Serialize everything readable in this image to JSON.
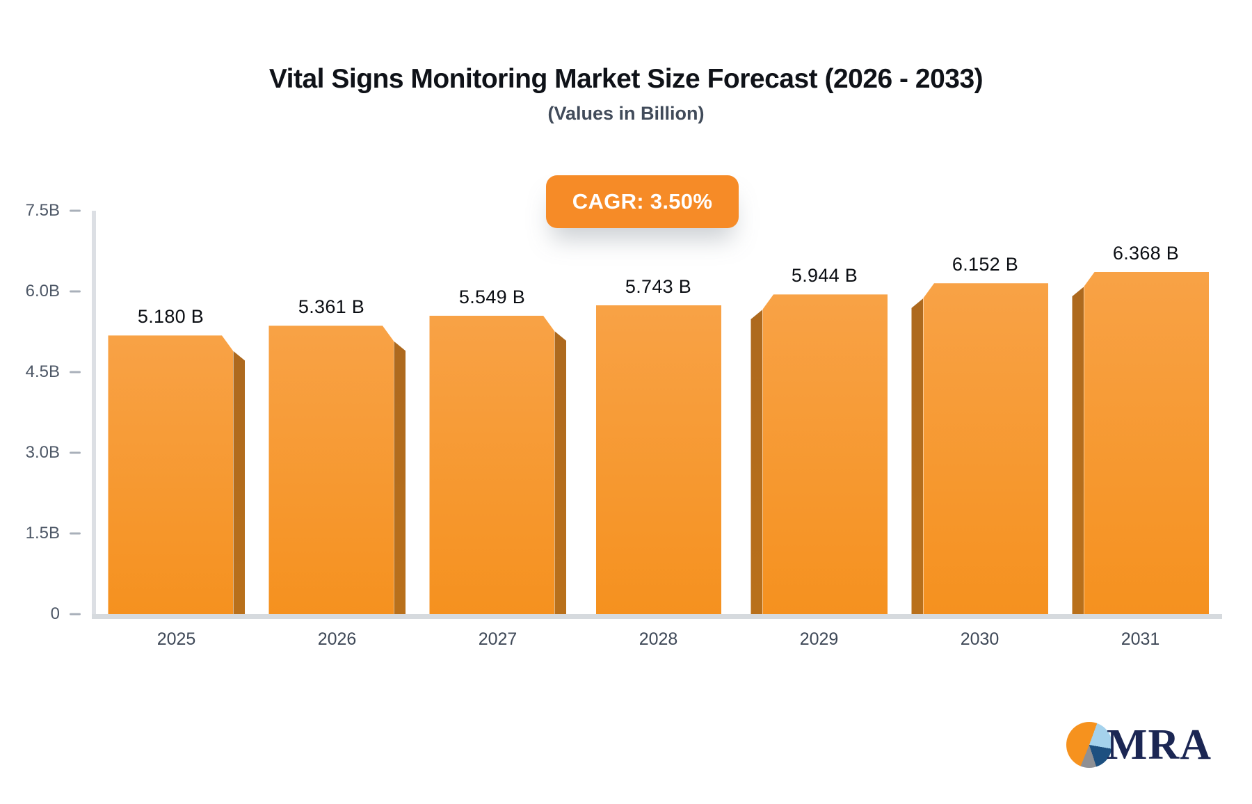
{
  "colors": {
    "accent_orange": "#f68b27",
    "bar_top": "#f8a246",
    "bar_bottom": "#f5911f",
    "bar_side": "#b56d1c",
    "axis_line": "#d9dce1",
    "tick_text": "#4d5766",
    "title_text": "#0f1218",
    "logo_navy": "#1b2653"
  },
  "header": {
    "title": "Vital Signs Monitoring Market Size Forecast (2026 - 2033)",
    "subtitle": "(Values in Billion)",
    "badge_label": "CAGR: 3.50%"
  },
  "chart_data": {
    "type": "bar",
    "title": "Vital Signs Monitoring Market Size Forecast (2026 - 2033)",
    "subtitle": "(Values in Billion)",
    "annotation": "CAGR: 3.50%",
    "cagr_percent": 3.5,
    "categories": [
      "2025",
      "2026",
      "2027",
      "2028",
      "2029",
      "2030",
      "2031"
    ],
    "values": [
      5.18,
      5.361,
      5.549,
      5.743,
      5.944,
      6.152,
      6.368
    ],
    "value_labels": [
      "5.180 B",
      "5.361 B",
      "5.549 B",
      "5.743 B",
      "5.944 B",
      "6.152 B",
      "6.368 B"
    ],
    "unit": "Billion",
    "xlabel": "",
    "ylabel": "",
    "ylim": [
      0,
      7.5
    ],
    "ytick_labels": [
      "0",
      "1.5B",
      "3.0B",
      "4.5B",
      "6.0B",
      "7.5B"
    ],
    "ytick_values": [
      0,
      1.5,
      3.0,
      4.5,
      6.0,
      7.5
    ],
    "grid": false,
    "legend": false,
    "bar_3d_shading": [
      "right",
      "right",
      "right",
      "none",
      "left",
      "left",
      "left"
    ]
  },
  "logo": {
    "text": "MRA",
    "pie_icon": "pie-chart-icon"
  }
}
